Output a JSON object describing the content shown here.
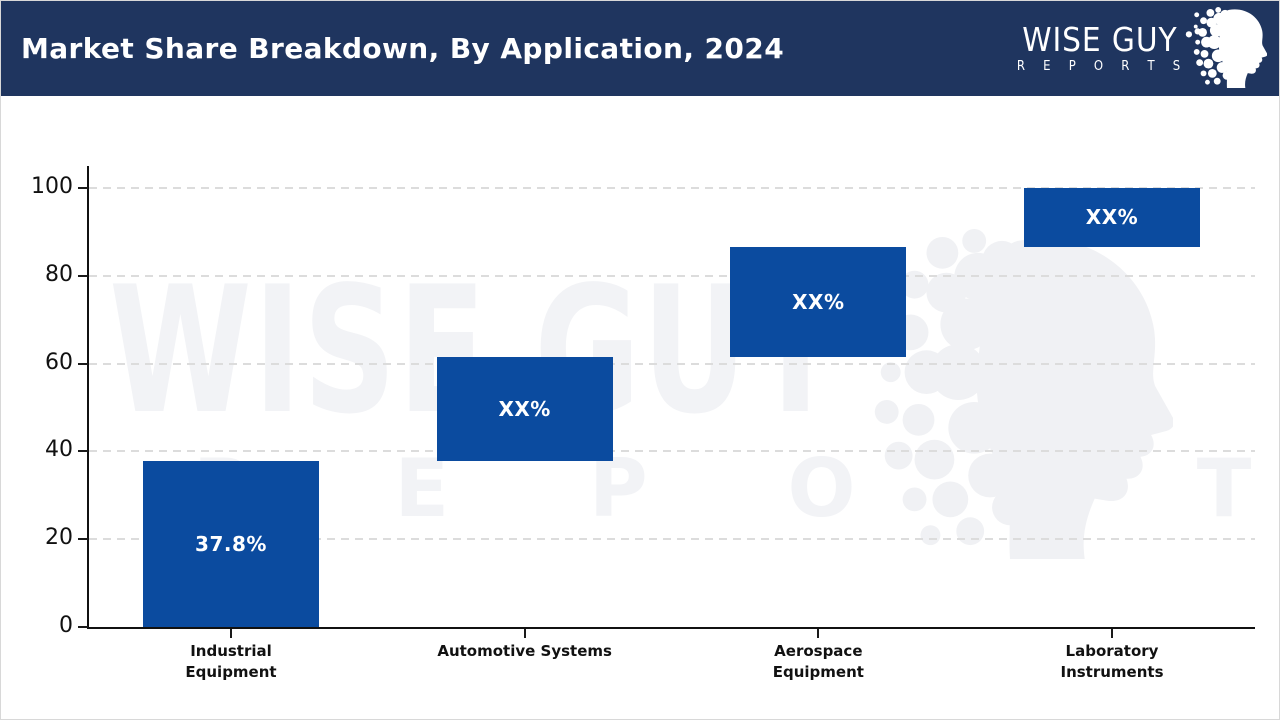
{
  "header": {
    "title": "Market Share Breakdown, By Application, 2024",
    "logo": {
      "name": "WISE GUY",
      "sub": "R E P O R T S"
    }
  },
  "watermark": {
    "text": "WISE GUY",
    "sub": "R E P O R T S"
  },
  "chart_data": {
    "type": "bar",
    "subtype": "floating-segment-waterfall",
    "title": "Market Share Breakdown, By Application, 2024",
    "categories": [
      "Industrial Equipment",
      "Automotive Systems",
      "Aerospace Equipment",
      "Laboratory Instruments"
    ],
    "category_label_lines": [
      [
        "Industrial",
        "Equipment"
      ],
      [
        "Automotive Systems"
      ],
      [
        "Aerospace",
        "Equipment"
      ],
      [
        "Laboratory",
        "Instruments"
      ]
    ],
    "segments": [
      {
        "category": "Industrial Equipment",
        "start": 0,
        "end": 37.8,
        "label": "37.8%"
      },
      {
        "category": "Automotive Systems",
        "start": 37.8,
        "end": 61.4,
        "label": "XX%"
      },
      {
        "category": "Aerospace Equipment",
        "start": 61.4,
        "end": 86.6,
        "label": "XX%"
      },
      {
        "category": "Laboratory Instruments",
        "start": 86.6,
        "end": 100,
        "label": "XX%"
      }
    ],
    "xlabel": "",
    "ylabel": "",
    "ylim": [
      0,
      100
    ],
    "yticks": [
      0,
      20,
      40,
      60,
      80,
      100
    ],
    "grid": "horizontal-dashed",
    "legend": "none",
    "colors": {
      "bar": "#0b4b9f",
      "bar_label": "#ffffff",
      "axis": "#111111",
      "gridline": "#dcdcdc",
      "header_bg": "#1f355f",
      "watermark": "#f2f3f6"
    }
  }
}
